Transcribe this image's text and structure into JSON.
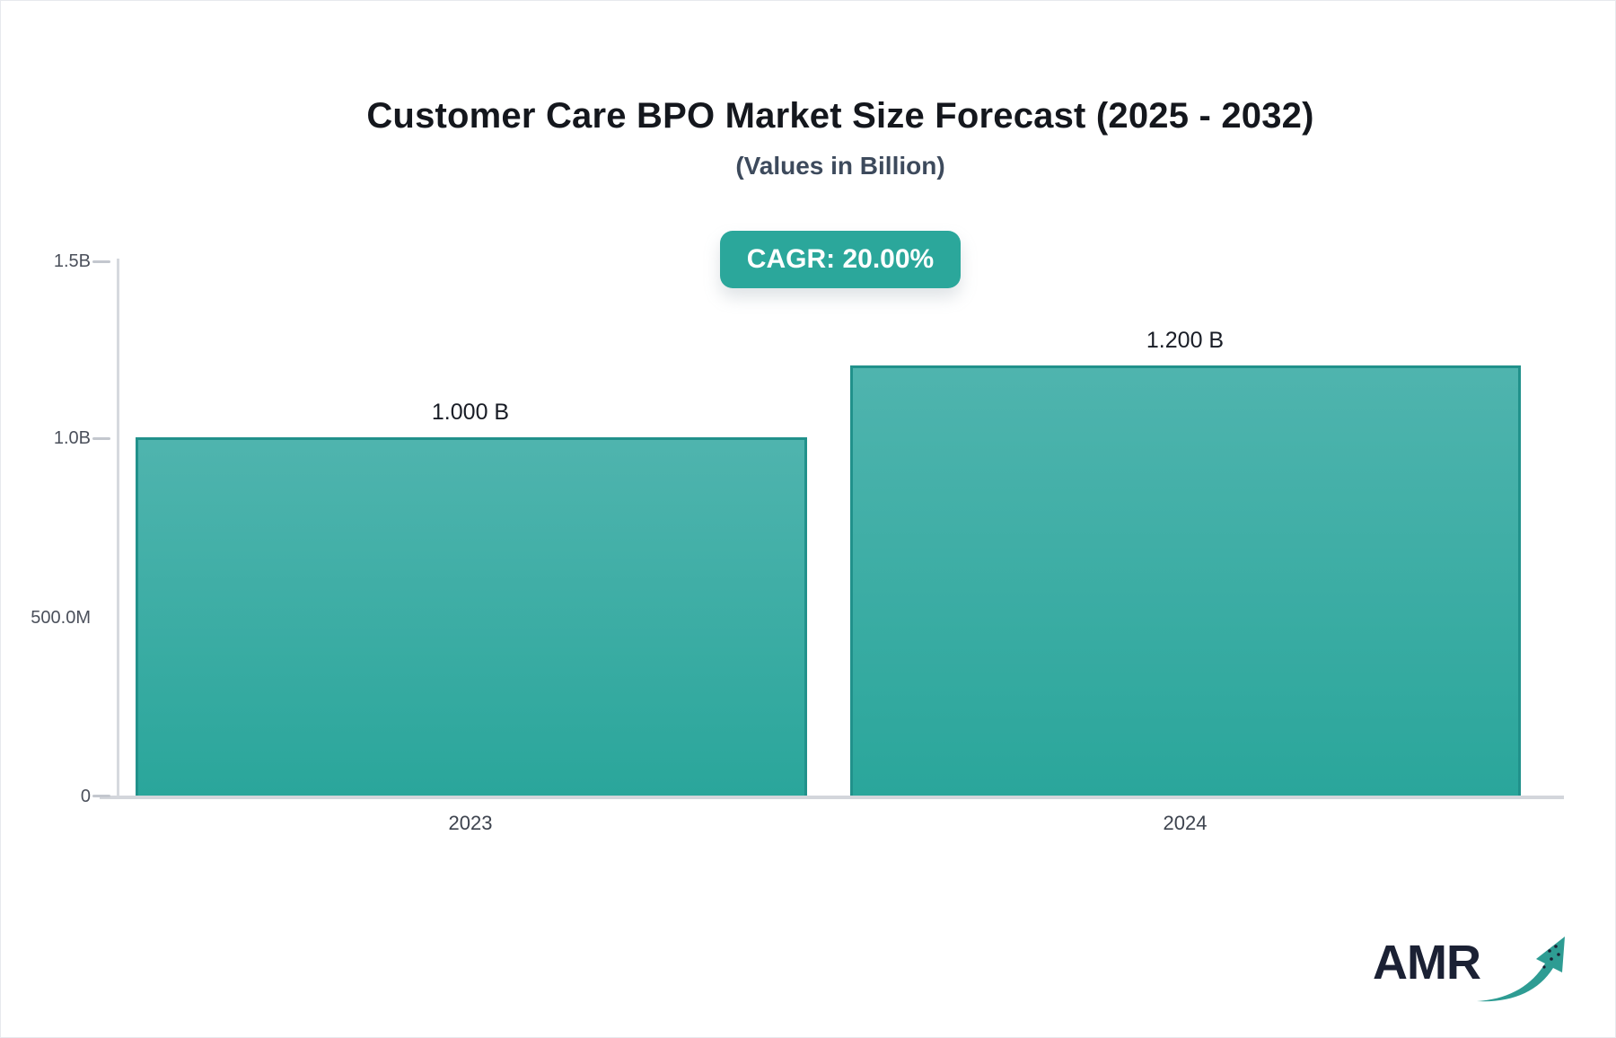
{
  "page": {
    "title": "Customer Care BPO Market Size Forecast (2025 - 2032)",
    "subtitle": "(Values in Billion)",
    "cagr_badge": "CAGR: 20.00%",
    "logo_text": "AMR"
  },
  "colors": {
    "bar_gradient_top": "#4FB4AE",
    "bar_gradient_bottom": "#2AA69B",
    "bar_border": "#21918B",
    "badge_background": "#2BA79B",
    "axis_line": "#d6d9de",
    "title_text": "#14171d",
    "subtitle_text": "#3d4a5c",
    "logo_navy": "#1b2134",
    "logo_arrow_teal": "#2E9C93"
  },
  "chart_data": {
    "type": "bar",
    "title": "Customer Care BPO Market Size Forecast (2025 - 2032)",
    "subtitle": "(Values in Billion)",
    "cagr": "20.00%",
    "categories": [
      "2023",
      "2024"
    ],
    "values": [
      1.0,
      1.2
    ],
    "value_labels": [
      "1.000 B",
      "1.200 B"
    ],
    "unit": "Billion USD",
    "ylim": [
      0,
      1.5
    ],
    "y_ticks": [
      {
        "label": "1.5B",
        "value": 1.5
      },
      {
        "label": "1.0B",
        "value": 1.0
      },
      {
        "label": "500.0M",
        "value": 0.5
      },
      {
        "label": "0",
        "value": 0
      }
    ],
    "grid": false,
    "legend": false,
    "xlabel": "",
    "ylabel": ""
  }
}
